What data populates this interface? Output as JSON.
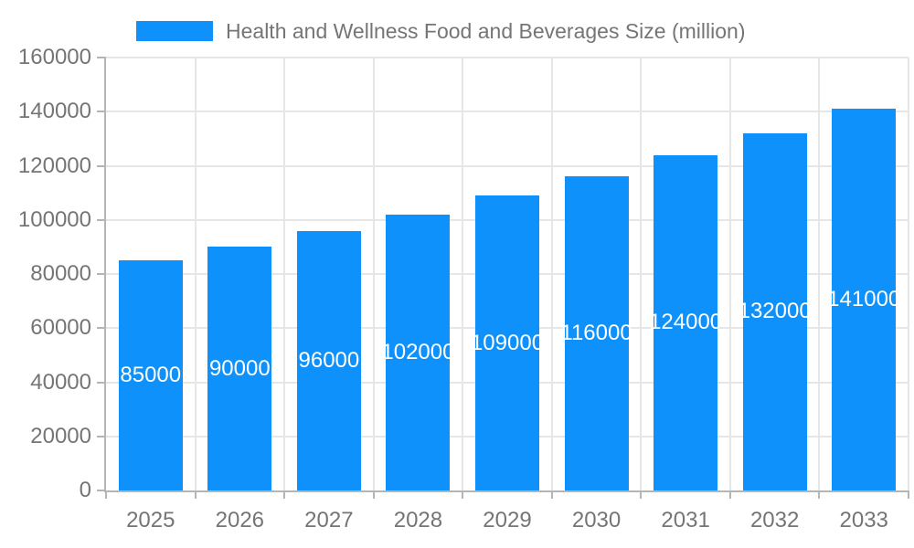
{
  "chart_data": {
    "type": "bar",
    "title": "Health and Wellness Food and Beverages Size (million)",
    "categories": [
      "2025",
      "2026",
      "2027",
      "2028",
      "2029",
      "2030",
      "2031",
      "2032",
      "2033"
    ],
    "values": [
      85000,
      90000,
      96000,
      102000,
      109000,
      116000,
      124000,
      132000,
      141000
    ],
    "bar_value_labels": [
      "85000",
      "90000",
      "96000",
      "102000",
      "109000",
      "116000",
      "124000",
      "132000",
      "141000"
    ],
    "xlabel": "",
    "ylabel": "",
    "ylim": [
      0,
      160000
    ],
    "ytick_step": 20000,
    "ytick_labels": [
      "0",
      "20000",
      "40000",
      "60000",
      "80000",
      "100000",
      "120000",
      "140000",
      "160000"
    ],
    "grid": true,
    "legend_position": "top",
    "colors": {
      "bar": "#0e91fb",
      "bar_label_text": "#ffffff",
      "axis_text": "#757575",
      "title_text": "#757575",
      "gridline": "#e6e6e6",
      "axis_line": "#b5b5b5",
      "background": "#ffffff"
    }
  }
}
